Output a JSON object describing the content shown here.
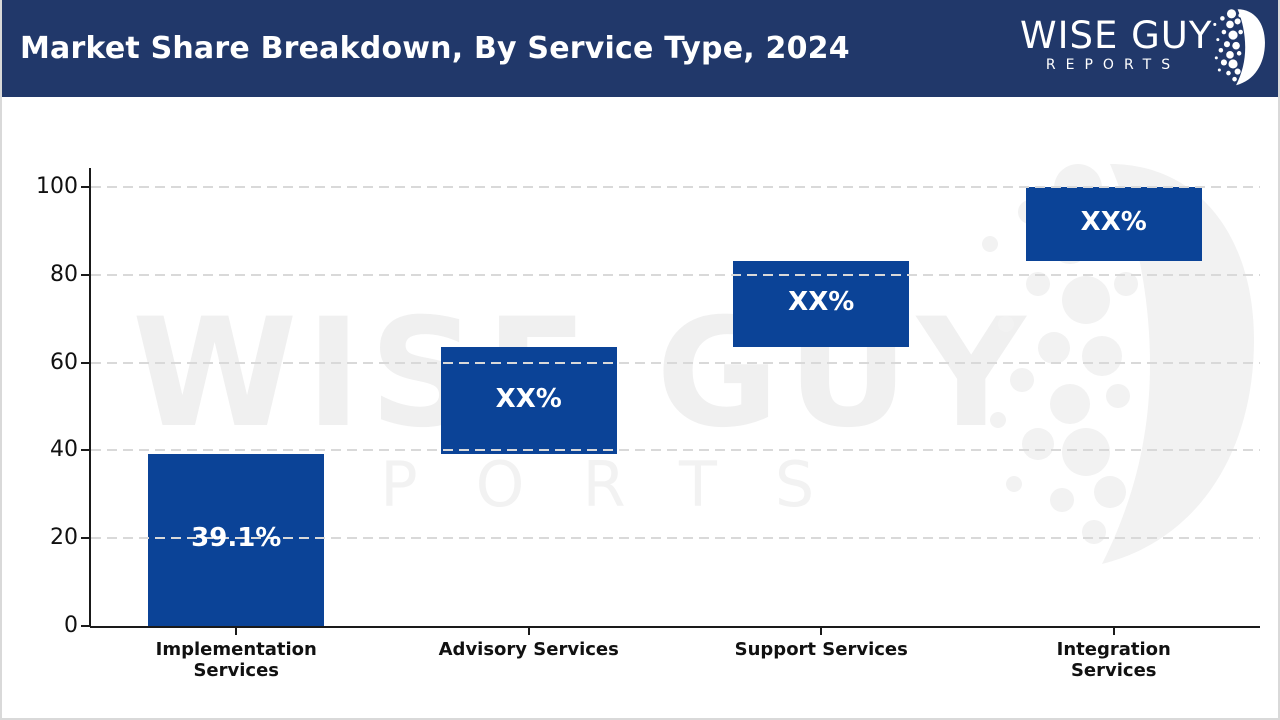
{
  "header": {
    "title": "Market Share Breakdown, By Service Type, 2024",
    "logo": {
      "line1": "WISE GUY",
      "line2": "REPORTS"
    }
  },
  "watermark": {
    "line1": "WISE GUY",
    "line2": "REPORTS"
  },
  "chart_data": {
    "type": "bar",
    "subtype": "waterfall",
    "title": "Market Share Breakdown, By Service Type, 2024",
    "categories": [
      "Implementation Services",
      "Advisory Services",
      "Support Services",
      "Integration Services"
    ],
    "category_lines": [
      [
        "Implementation",
        "Services"
      ],
      [
        "Advisory Services"
      ],
      [
        "Support Services"
      ],
      [
        "Integration",
        "Services"
      ]
    ],
    "segments": [
      {
        "category": "Implementation Services",
        "start": 0,
        "end": 39.1,
        "label": "39.1%"
      },
      {
        "category": "Advisory Services",
        "start": 39.1,
        "end": 63.5,
        "label": "XX%"
      },
      {
        "category": "Support Services",
        "start": 63.5,
        "end": 83.1,
        "label": "XX%"
      },
      {
        "category": "Integration Services",
        "start": 83.1,
        "end": 100,
        "label": "XX%"
      }
    ],
    "y_ticks": [
      0,
      20,
      40,
      60,
      80,
      100
    ],
    "ylim": [
      0,
      105
    ],
    "xlabel": "",
    "ylabel": "",
    "legend": null,
    "grid": "horizontal-dashed",
    "colors": {
      "bar": "#0b4397",
      "header": "#21386a",
      "gridline": "#d9d9d9",
      "axis": "#1a1a1a",
      "value_label": "#ffffff",
      "watermark": "#f0f0f0"
    }
  }
}
